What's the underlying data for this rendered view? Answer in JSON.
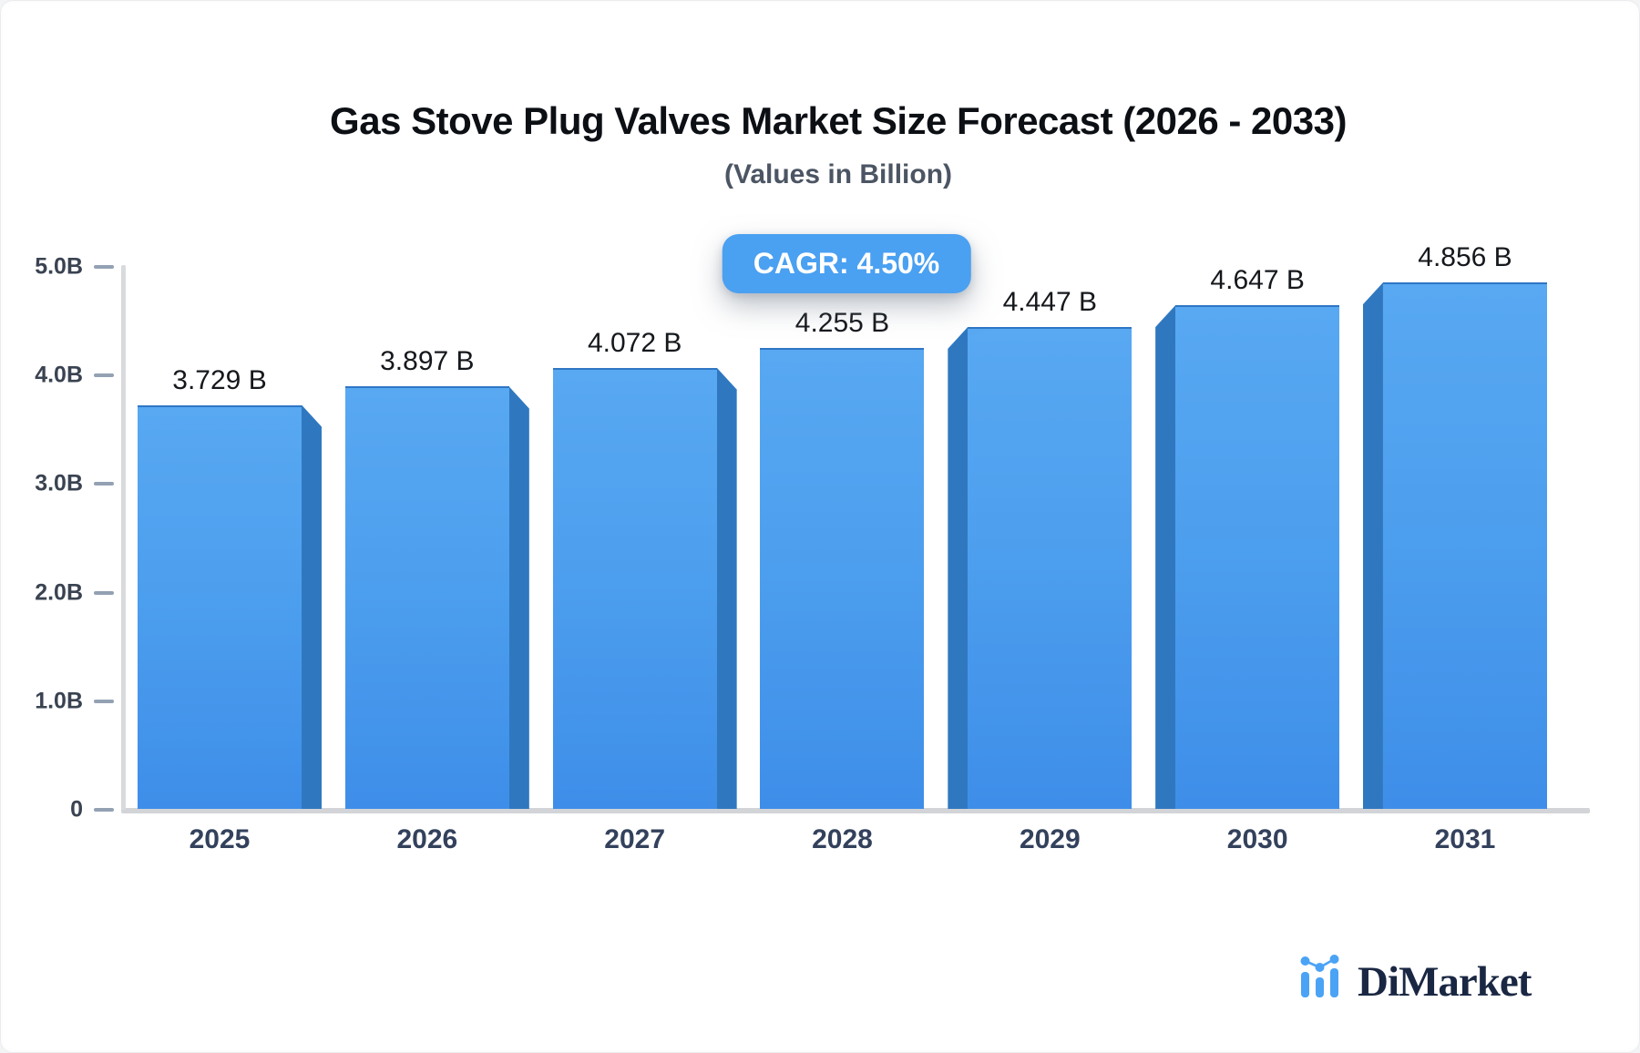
{
  "chart_data": {
    "type": "bar",
    "title": "Gas Stove Plug Valves Market Size Forecast (2026 - 2033)",
    "subtitle": "(Values in Billion)",
    "annotation": "CAGR: 4.50%",
    "unit": "Billion",
    "categories": [
      "2025",
      "2026",
      "2027",
      "2028",
      "2029",
      "2030",
      "2031"
    ],
    "values": [
      3.729,
      3.897,
      4.072,
      4.255,
      4.447,
      4.647,
      4.856
    ],
    "bar_labels": [
      "3.729 B",
      "3.897 B",
      "4.072 B",
      "4.255 B",
      "4.447 B",
      "4.647 B",
      "4.856 B"
    ],
    "ylim": [
      0,
      5
    ],
    "yticks": [
      {
        "value": 0,
        "label": "0"
      },
      {
        "value": 1,
        "label": "1.0B"
      },
      {
        "value": 2,
        "label": "2.0B"
      },
      {
        "value": 3,
        "label": "3.0B"
      },
      {
        "value": 4,
        "label": "4.0B"
      },
      {
        "value": 5,
        "label": "5.0B"
      }
    ],
    "grid": false,
    "legend": false,
    "colors": {
      "bar_face_top": "#58a8f2",
      "bar_face_bottom": "#3e8ee9",
      "bar_side": "#2f78c0",
      "accent": "#4aa0f1",
      "axis_line": "#d9dadd",
      "tick_dash": "#93a1b3"
    }
  },
  "logo": {
    "name": "DiMarket",
    "icon": "bar-sparkline-icon",
    "icon_color": "#4aa3f5",
    "text_color": "#1a2743"
  }
}
